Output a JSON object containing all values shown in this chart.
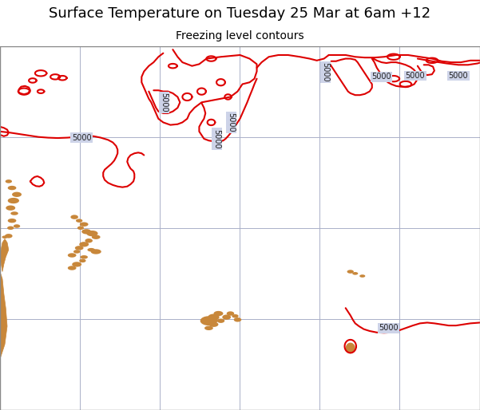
{
  "title": "Surface Temperature on Tuesday 25 Mar at 6am +12",
  "subtitle": "Freezing level contours",
  "title_fontsize": 13,
  "subtitle_fontsize": 10,
  "header_bg": "#ffffff",
  "map_bg": "#cdd3e8",
  "contour_color": "#dd0000",
  "land_color": "#c8873a",
  "grid_color": "#aab0c8",
  "figsize": [
    6.01,
    5.14
  ],
  "dpi": 100
}
